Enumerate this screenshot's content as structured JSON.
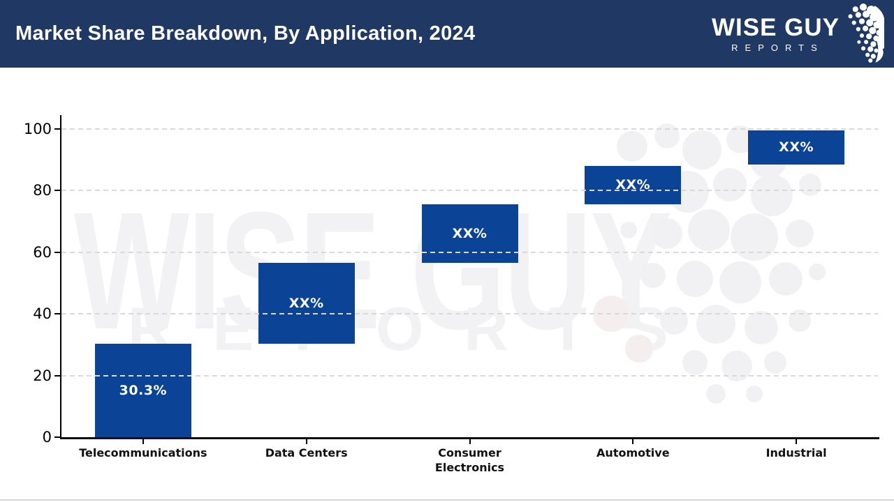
{
  "header": {
    "title": "Market Share Breakdown, By Application, 2024",
    "bg_color": "#1f3864",
    "logo": {
      "name": "WISE GUY",
      "sub": "REPORTS"
    }
  },
  "watermark": {
    "big": "WISE GUY",
    "sub": "REPORTS"
  },
  "chart_data": {
    "type": "bar",
    "variant": "waterfall",
    "title": "Market Share Breakdown, By Application, 2024",
    "categories": [
      "Telecommunications",
      "Data Centers",
      "Consumer Electronics",
      "Automotive",
      "Industrial"
    ],
    "tick_labels": [
      "Telecommunications",
      "Data Centers",
      "Consumer\nElectronics",
      "Automotive",
      "Industrial"
    ],
    "segments": [
      {
        "category": "Telecommunications",
        "start": 0,
        "end": 30.3,
        "label": "30.3%"
      },
      {
        "category": "Data Centers",
        "start": 30.3,
        "end": 56.6,
        "label": "XX%"
      },
      {
        "category": "Consumer Electronics",
        "start": 56.6,
        "end": 75.6,
        "label": "XX%"
      },
      {
        "category": "Automotive",
        "start": 75.6,
        "end": 88.1,
        "label": "XX%"
      },
      {
        "category": "Industrial",
        "start": 88.5,
        "end": 99.6,
        "label": "XX%"
      }
    ],
    "y_ticks": [
      0,
      20,
      40,
      60,
      80,
      100
    ],
    "ylim": [
      0,
      105
    ],
    "xlabel": "",
    "ylabel": "",
    "grid": true,
    "legend": false,
    "bar_color": "#0b4396",
    "bar_label_color": "#ffffff",
    "axis_color": "#000000",
    "gridline_color": "#d9d9d9"
  }
}
